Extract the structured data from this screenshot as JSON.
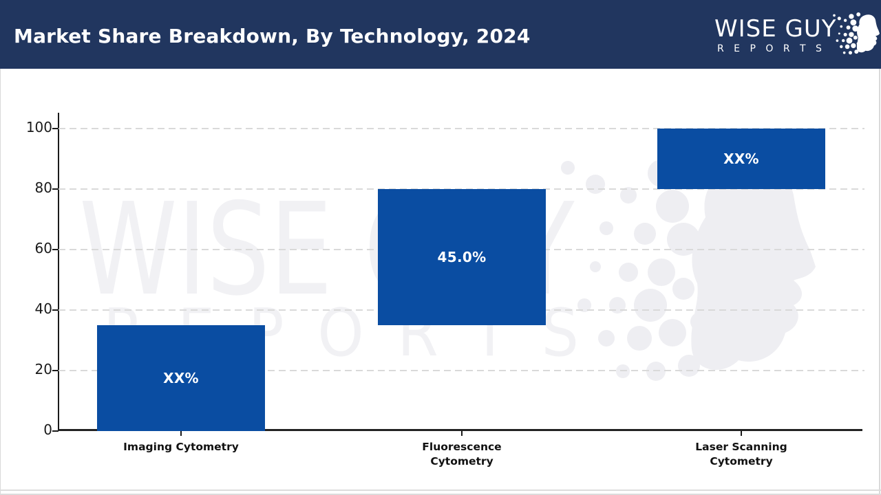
{
  "header": {
    "title": "Market Share Breakdown, By Technology, 2024",
    "logo": {
      "wordmark": "WISE GUY",
      "subtext": "R E P O R T S",
      "icon": "dotted-head-profile"
    }
  },
  "watermark": {
    "wordmark": "WISE GUY",
    "subtext": "R E P O R T S",
    "icon": "dotted-head-profile"
  },
  "chart_data": {
    "type": "bar",
    "subtype": "waterfall",
    "title": "Market Share Breakdown, By Technology, 2024",
    "categories": [
      "Imaging Cytometry",
      "Fluorescence Cytometry",
      "Laser Scanning Cytometry"
    ],
    "category_label_lines": [
      [
        "Imaging Cytometry"
      ],
      [
        "Fluorescence",
        "Cytometry"
      ],
      [
        "Laser Scanning",
        "Cytometry"
      ]
    ],
    "bars": [
      {
        "category": "Imaging Cytometry",
        "start": 0,
        "end": 35,
        "value_label": "XX%"
      },
      {
        "category": "Fluorescence Cytometry",
        "start": 35,
        "end": 80,
        "value_label": "45.0%"
      },
      {
        "category": "Laser Scanning Cytometry",
        "start": 80,
        "end": 100,
        "value_label": "XX%"
      }
    ],
    "xlabel": "",
    "ylabel": "",
    "ylim": [
      0,
      100
    ],
    "yticks": [
      0,
      20,
      40,
      60,
      80,
      100
    ],
    "grid": "horizontal-dashed",
    "legend": "none",
    "bar_color": "#0A4DA2",
    "bar_label_color": "#FFFFFF"
  },
  "colors": {
    "header_bg": "#21365F",
    "bar": "#0A4DA2",
    "axis": "#1A1A1A",
    "gridline": "#D9D9D9",
    "watermark": "#F1F1F4",
    "background": "#FFFFFF"
  }
}
